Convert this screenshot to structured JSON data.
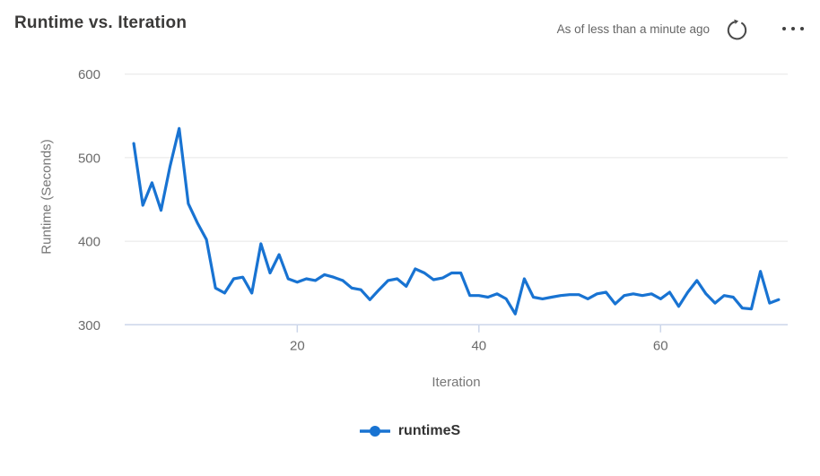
{
  "header": {
    "title": "Runtime vs. Iteration",
    "freshness": "As of less than a minute ago",
    "refresh_icon": "refresh-icon",
    "more_icon": "ellipsis-icon"
  },
  "colors": {
    "line": "#1873D2",
    "grid": "#e6e6e6",
    "axis": "#ccd6ea",
    "title_text": "#3b3a39",
    "muted_text": "#666666",
    "tick_text": "#6b6b6b",
    "axis_title_text": "#767676",
    "legend_text": "#333333",
    "icon": "#4a4a4a"
  },
  "chart_data": {
    "type": "line",
    "title": "Runtime vs. Iteration",
    "xlabel": "Iteration",
    "ylabel": "Runtime (Seconds)",
    "xlim": [
      1,
      74
    ],
    "ylim": [
      300,
      600
    ],
    "xticks": [
      20,
      40,
      60
    ],
    "yticks": [
      300,
      400,
      500,
      600
    ],
    "grid": "horizontal",
    "legend_position": "bottom-center",
    "series": [
      {
        "name": "runtimeS",
        "x": [
          2,
          3,
          4,
          5,
          6,
          7,
          8,
          9,
          10,
          11,
          12,
          13,
          14,
          15,
          16,
          17,
          18,
          19,
          20,
          21,
          22,
          23,
          24,
          25,
          26,
          27,
          28,
          29,
          30,
          31,
          32,
          33,
          34,
          35,
          36,
          37,
          38,
          39,
          40,
          41,
          42,
          43,
          44,
          45,
          46,
          47,
          48,
          49,
          50,
          51,
          52,
          53,
          54,
          55,
          56,
          57,
          58,
          59,
          60,
          61,
          62,
          63,
          64,
          65,
          66,
          67,
          68,
          69,
          70,
          71,
          72,
          73
        ],
        "y": [
          517,
          443,
          470,
          437,
          490,
          535,
          445,
          422,
          402,
          344,
          338,
          355,
          357,
          338,
          397,
          362,
          384,
          355,
          351,
          355,
          353,
          360,
          357,
          353,
          344,
          342,
          330,
          342,
          353,
          355,
          346,
          367,
          362,
          354,
          356,
          362,
          362,
          335,
          335,
          333,
          337,
          331,
          313,
          355,
          333,
          331,
          333,
          335,
          336,
          336,
          331,
          337,
          339,
          325,
          335,
          337,
          335,
          337,
          331,
          339,
          322,
          339,
          353,
          337,
          326,
          335,
          333,
          320,
          319,
          364,
          326,
          330
        ]
      }
    ]
  }
}
